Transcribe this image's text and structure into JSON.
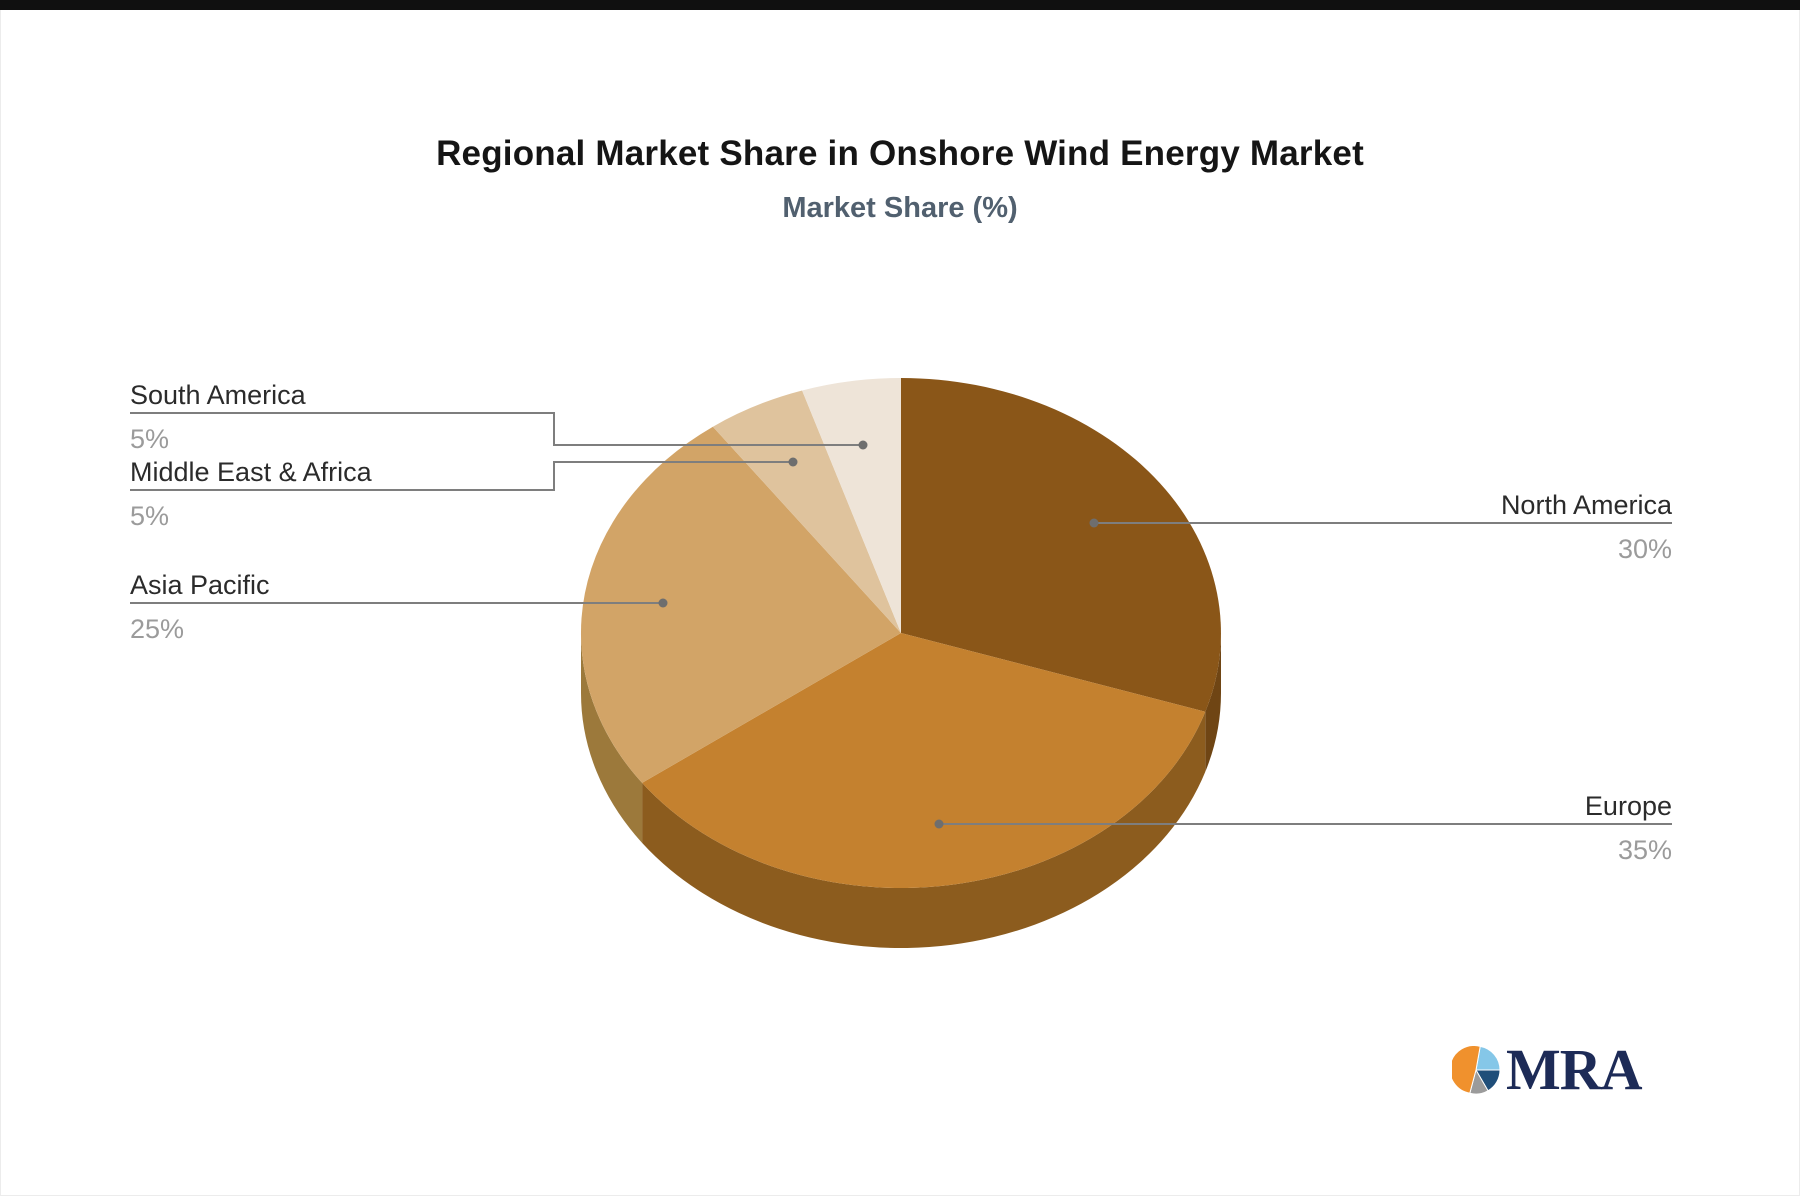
{
  "page": {
    "top_bar_color": "#101010"
  },
  "title": "Regional Market Share in Onshore Wind Energy Market",
  "subtitle": "Market Share (%)",
  "chart_data": {
    "type": "pie",
    "title": "Regional Market Share in Onshore Wind Energy Market",
    "subtitle": "Market Share (%)",
    "unit": "%",
    "direction": "clockwise",
    "start_angle_deg": 0,
    "style": "3d",
    "slices": [
      {
        "label": "North America",
        "value": 30,
        "pct_label": "30%",
        "color": "#8A5618",
        "side_color": "#6F4514"
      },
      {
        "label": "Europe",
        "value": 35,
        "pct_label": "35%",
        "color": "#C4812F",
        "side_color": "#8C5C1E"
      },
      {
        "label": "Asia Pacific",
        "value": 25,
        "pct_label": "25%",
        "color": "#D2A467",
        "side_color": "#9C793B"
      },
      {
        "label": "Middle East & Africa",
        "value": 5,
        "pct_label": "5%",
        "color": "#DFC39D",
        "side_color": "#B1986F"
      },
      {
        "label": "South America",
        "value": 5,
        "pct_label": "5%",
        "color": "#EEE4D8",
        "side_color": "#C3B6A5"
      }
    ],
    "connector_color": "#7E7E7E"
  },
  "logo": {
    "text": "MRA",
    "text_color": "#1D2B57",
    "mark_colors": {
      "orange": "#F0912D",
      "light_blue": "#85C7E8",
      "navy": "#1F4E79",
      "gray": "#9B9B9B"
    }
  }
}
